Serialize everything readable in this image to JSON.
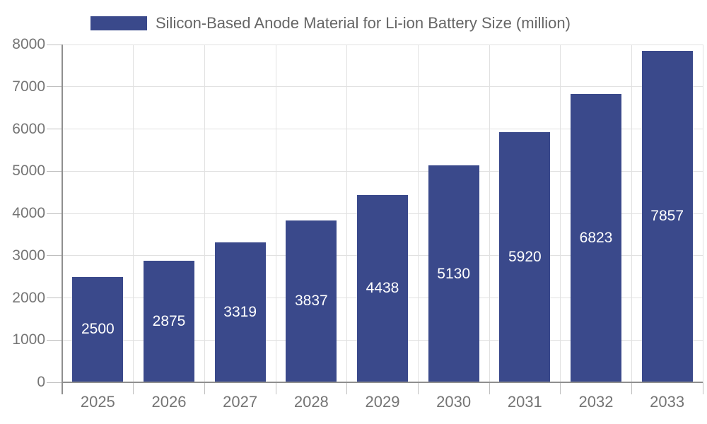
{
  "chart_data": {
    "type": "bar",
    "title": "Silicon-Based Anode Material for Li-ion Battery Size (million)",
    "legend_position": "top",
    "series": [
      {
        "name": "Silicon-Based Anode Material for Li-ion Battery Size (million)",
        "values": [
          2500,
          2875,
          3319,
          3837,
          4438,
          5130,
          5920,
          6823,
          7857
        ]
      }
    ],
    "categories": [
      "2025",
      "2026",
      "2027",
      "2028",
      "2029",
      "2030",
      "2031",
      "2032",
      "2033"
    ],
    "xlabel": "",
    "ylabel": "",
    "ylim": [
      0,
      8000
    ],
    "yticks": [
      0,
      1000,
      2000,
      3000,
      4000,
      5000,
      6000,
      7000,
      8000
    ],
    "grid": true,
    "value_labels": "inside-center",
    "colors": {
      "bar": "#3A498B",
      "value_label": "#FFFFFF",
      "axis_text": "#757575",
      "legend_text": "#666666",
      "grid_line": "#E1E1E1",
      "axis_line": "#8F8F8F",
      "tick": "#BFBFBF",
      "background": "#FFFFFF"
    }
  }
}
